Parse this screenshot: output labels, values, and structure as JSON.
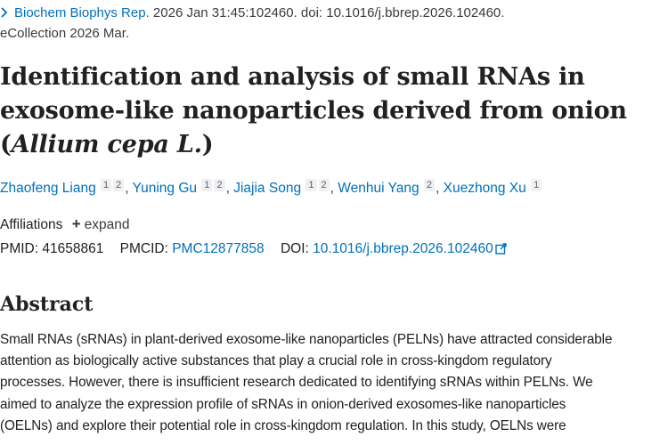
{
  "citation": {
    "journal": "Biochem Biophys Rep.",
    "details": " 2026 Jan 31:45:102460. doi: 10.1016/j.bbrep.2026.102460.",
    "ecollection": "eCollection 2026 Mar."
  },
  "article": {
    "title_main": "Identification and analysis of small RNAs in exosome-like nanoparticles derived from onion (",
    "title_species": "Allium cepa L.",
    "title_end": ")"
  },
  "authors": [
    {
      "name": "Zhaofeng Liang",
      "affiliations": [
        "1",
        "2"
      ]
    },
    {
      "name": "Yuning Gu",
      "affiliations": [
        "1",
        "2"
      ]
    },
    {
      "name": "Jiajia Song",
      "affiliations": [
        "1",
        "2"
      ]
    },
    {
      "name": "Wenhui Yang",
      "affiliations": [
        "2"
      ]
    },
    {
      "name": "Xuezhong Xu",
      "affiliations": [
        "1"
      ]
    }
  ],
  "affiliations": {
    "label": "Affiliations",
    "expand_label": "expand"
  },
  "identifiers": {
    "pmid_label": "PMID:",
    "pmid": "41658861",
    "pmcid_label": "PMCID:",
    "pmcid": "PMC12877858",
    "doi_label": "DOI:",
    "doi": "10.1016/j.bbrep.2026.102460"
  },
  "abstract": {
    "heading": "Abstract",
    "lines": [
      "Small RNAs (sRNAs) in plant-derived exosome-like nanoparticles (PELNs) have attracted considerable",
      "attention as biologically active substances that play a crucial role in cross-kingdom regulatory",
      "processes. However, there is insufficient research dedicated to identifying sRNAs within PELNs. We",
      "aimed to analyze the expression profile of sRNAs in onion-derived exosomes-like nanoparticles",
      "(OELNs) and explore their potential role in cross-kingdom regulation. In this study, OELNs were"
    ]
  },
  "colors": {
    "link": "#0071bc",
    "text": "#212121",
    "badge_bg": "#eef0f2"
  },
  "icons": {
    "chevron": "chevron-right-icon",
    "plus": "plus-icon",
    "external": "external-link-icon"
  }
}
